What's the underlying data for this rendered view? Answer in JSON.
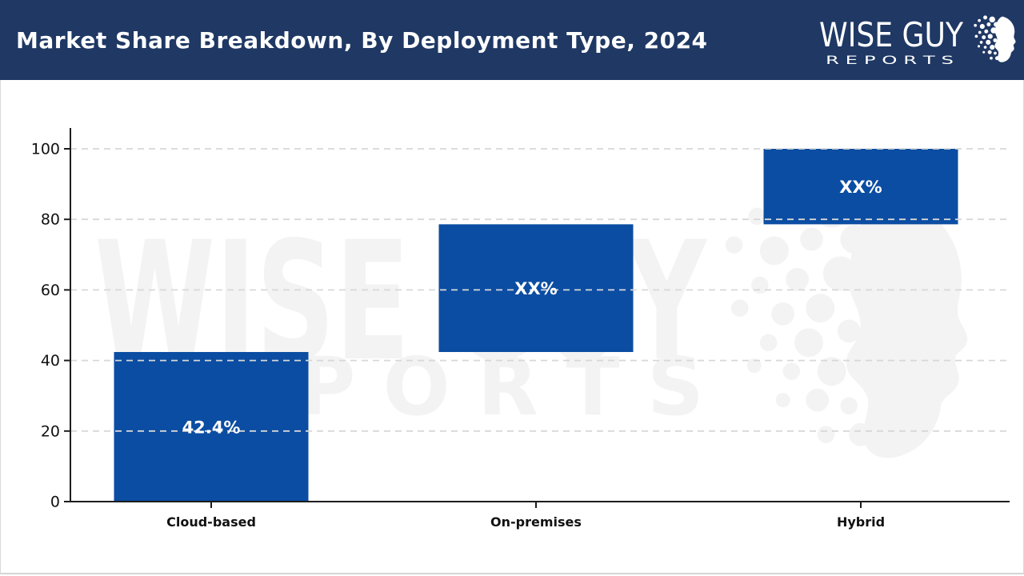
{
  "header": {
    "title": "Market Share Breakdown, By Deployment Type, 2024",
    "logo": {
      "line1": "WISE GUY",
      "line2": "R E P O R T S"
    }
  },
  "watermark": {
    "line1": "WISE GUY",
    "line2": "R E P O R T S"
  },
  "colors": {
    "header_bg": "#1f3864",
    "bar": "#0b4da2",
    "bar_label": "#ffffff",
    "title_text": "#ffffff",
    "watermark": "#f3f3f3",
    "gridline": "#d8d8d8",
    "axis": "#1c1c1c",
    "tick_text": "#111111"
  },
  "chart_data": {
    "type": "bar",
    "subtype": "waterfall",
    "title": "Market Share Breakdown, By Deployment Type, 2024",
    "xlabel": "",
    "ylabel": "",
    "categories": [
      "Cloud-based",
      "On-premises",
      "Hybrid"
    ],
    "segments": [
      {
        "category": "Cloud-based",
        "start": 0,
        "end": 42.4,
        "value": 42.4,
        "label": "42.4%"
      },
      {
        "category": "On-premises",
        "start": 42.4,
        "end": 78.6,
        "value": 36.2,
        "label": "XX%"
      },
      {
        "category": "Hybrid",
        "start": 78.6,
        "end": 100,
        "value": 21.4,
        "label": "XX%"
      }
    ],
    "ylim": [
      0,
      100
    ],
    "y_ticks": [
      0,
      20,
      40,
      60,
      80,
      100
    ],
    "grid": "dashed horizontal",
    "legend": "none"
  }
}
